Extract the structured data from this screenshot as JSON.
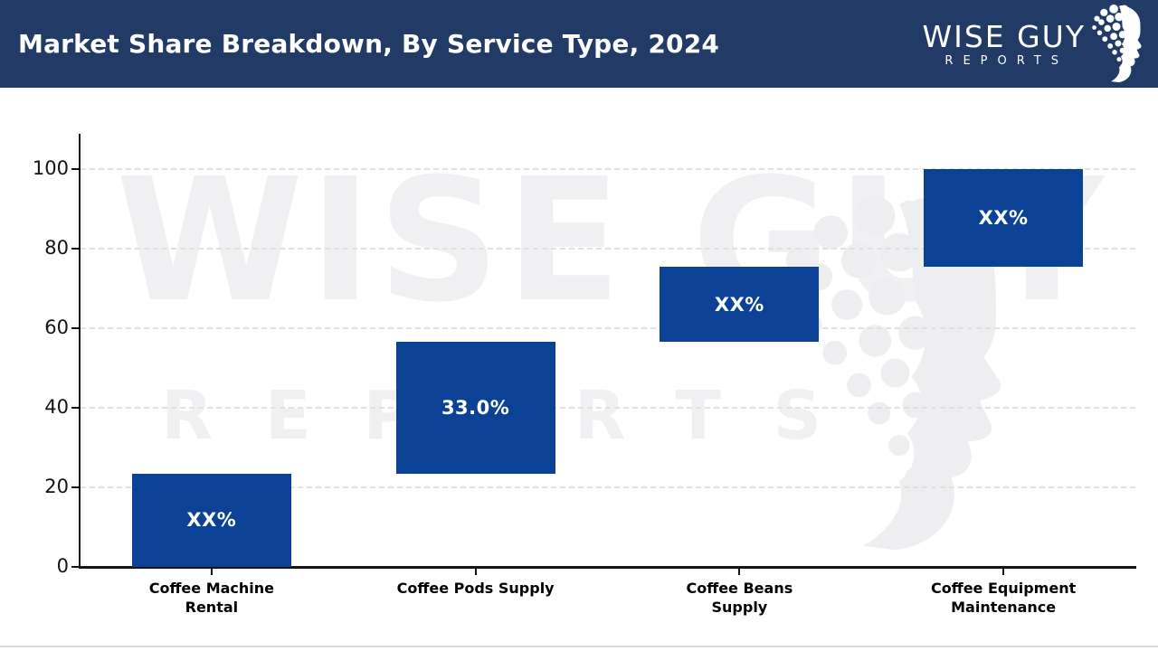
{
  "header": {
    "title": "Market Share Breakdown, By Service Type, 2024",
    "bg_color": "#213a66",
    "logo": {
      "name": "WISE GUY",
      "sub": "REPORTS"
    }
  },
  "watermark": {
    "name": "WISE GUY",
    "sub": "REPORTS"
  },
  "chart_data": {
    "type": "bar",
    "subtype": "waterfall",
    "title": "Market Share Breakdown, By Service Type, 2024",
    "unit": "%",
    "categories": [
      [
        "Coffee Machine",
        "Rental"
      ],
      [
        "Coffee Pods Supply"
      ],
      [
        "Coffee Beans",
        "Supply"
      ],
      [
        "Coffee Equipment",
        "Maintenance"
      ]
    ],
    "segments": [
      {
        "category": "Coffee Machine Rental",
        "label": "XX%",
        "start": 0,
        "end": 23.5
      },
      {
        "category": "Coffee Pods Supply",
        "label": "33.0%",
        "start": 23.5,
        "end": 56.5
      },
      {
        "category": "Coffee Beans Supply",
        "label": "XX%",
        "start": 56.5,
        "end": 75.5
      },
      {
        "category": "Coffee Equipment Maintenance",
        "label": "XX%",
        "start": 75.5,
        "end": 100
      }
    ],
    "yticks": [
      0,
      20,
      40,
      60,
      80,
      100
    ],
    "ylim": [
      0,
      109
    ],
    "bar_color": "#0b4296",
    "bar_label_color": "#ffffff",
    "grid": {
      "axis": "y",
      "style": "dashed",
      "color": "#e1e1e1"
    },
    "legend": null
  }
}
